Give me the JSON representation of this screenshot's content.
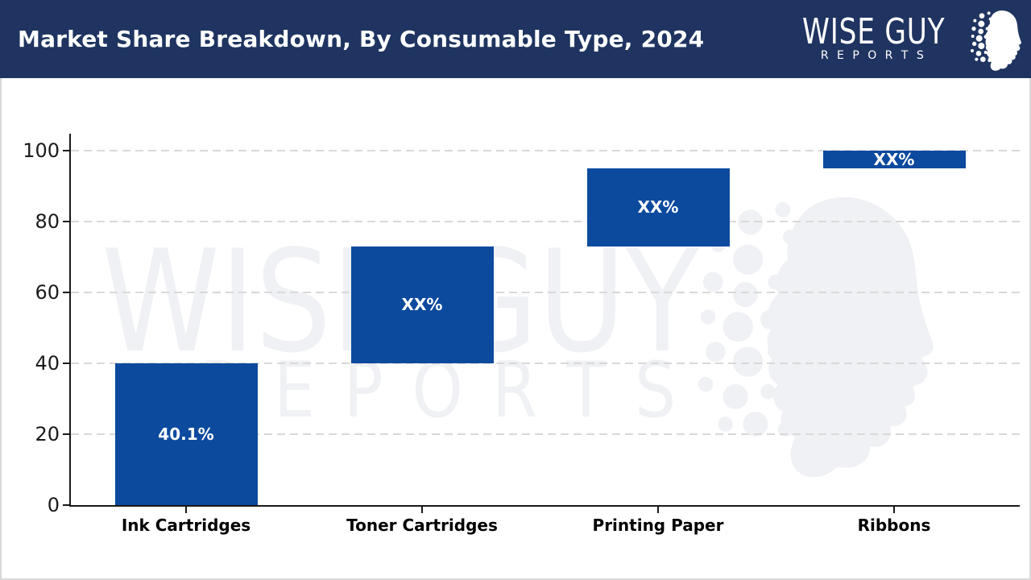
{
  "header": {
    "title": "Market Share Breakdown, By Consumable Type, 2024",
    "logo": {
      "line1": "WISE GUY",
      "line2": "R E P O R T S"
    }
  },
  "watermark": {
    "line1": "WISE GUY",
    "line2": "R E P O R T S"
  },
  "chart_data": {
    "type": "bar",
    "subtype": "waterfall",
    "title": "Market Share Breakdown, By Consumable Type, 2024",
    "categories": [
      "Ink Cartridges",
      "Toner Cartridges",
      "Printing Paper",
      "Ribbons"
    ],
    "series": [
      {
        "name": "Market share (%)",
        "segments": [
          {
            "category": "Ink Cartridges",
            "label": "40.1%",
            "value": 40.1,
            "start": 0,
            "end": 40.1
          },
          {
            "category": "Toner Cartridges",
            "label": "XX%",
            "value": 32.9,
            "start": 40.1,
            "end": 73
          },
          {
            "category": "Printing Paper",
            "label": "XX%",
            "value": 22,
            "start": 73,
            "end": 95
          },
          {
            "category": "Ribbons",
            "label": "XX%",
            "value": 5,
            "start": 95,
            "end": 100
          }
        ]
      }
    ],
    "yticks": [
      "0",
      "20",
      "40",
      "60",
      "80",
      "100"
    ],
    "ylim": [
      0,
      104
    ],
    "xlabel": "",
    "ylabel": "",
    "grid": "horizontal dashed",
    "legend": false,
    "bar_color": "#0C4A9E",
    "bar_label_color": "#FFFFFF"
  },
  "colors": {
    "header_bg": "#1F3460",
    "header_text": "#FFFFFF",
    "bar": "#0C4A9E",
    "grid": "#D9D9D9",
    "axis": "#1A1A1A",
    "category_label": "#000000",
    "watermark": "#F0F1F4",
    "canvas_border": "#D9D9D9",
    "background": "#FFFFFF"
  }
}
